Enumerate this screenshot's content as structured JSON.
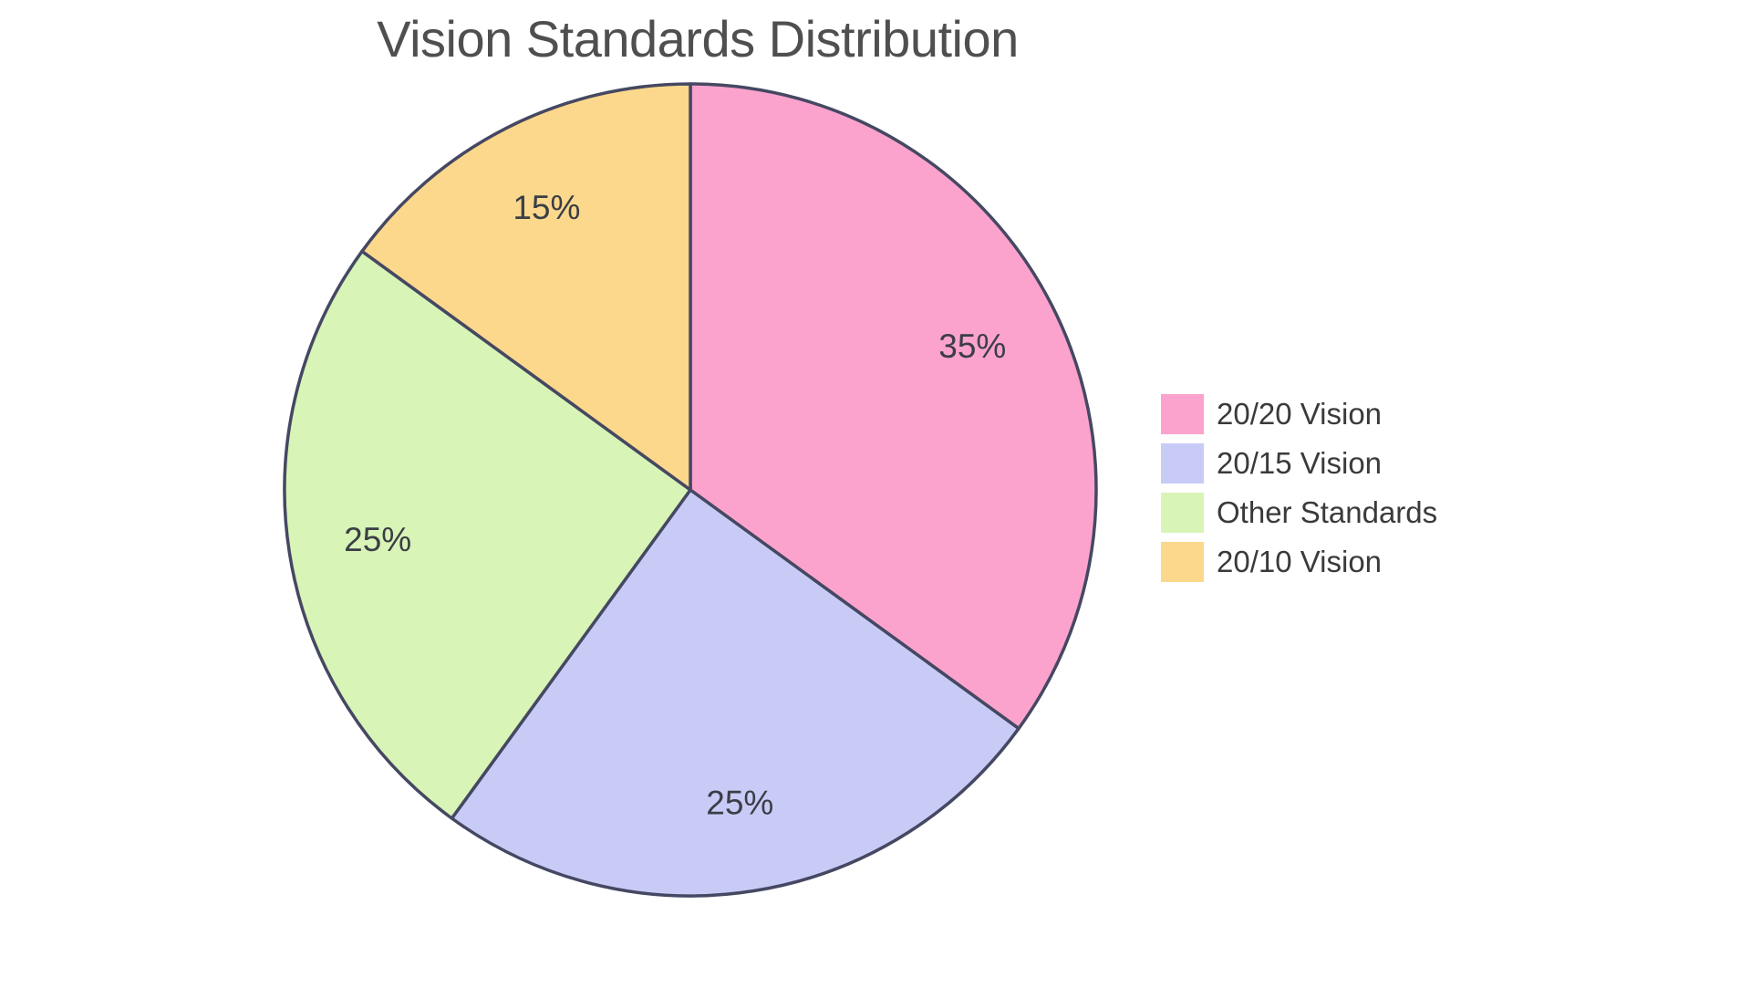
{
  "title": "Vision Standards Distribution",
  "chart_data": {
    "type": "pie",
    "title": "Vision Standards Distribution",
    "categories": [
      "20/20 Vision",
      "20/15 Vision",
      "Other Standards",
      "20/10 Vision"
    ],
    "values": [
      35,
      25,
      25,
      15
    ],
    "slice_labels": [
      "35%",
      "25%",
      "25%",
      "15%"
    ],
    "colors": [
      "#FCA3CD",
      "#C9CBF7",
      "#D8F4B6",
      "#FBD88C"
    ],
    "slice_border_color": "#454862",
    "slice_label_color": "#3B3E46",
    "title_color": "#4F4F4F",
    "legend_text_color": "#3A3A3A",
    "background_color": "#FFFFFF",
    "start_angle": "12 o'clock",
    "direction": "clockwise",
    "legend_position": "right",
    "legend_entries": [
      "20/20 Vision",
      "20/15 Vision",
      "Other Standards",
      "20/10 Vision"
    ]
  }
}
